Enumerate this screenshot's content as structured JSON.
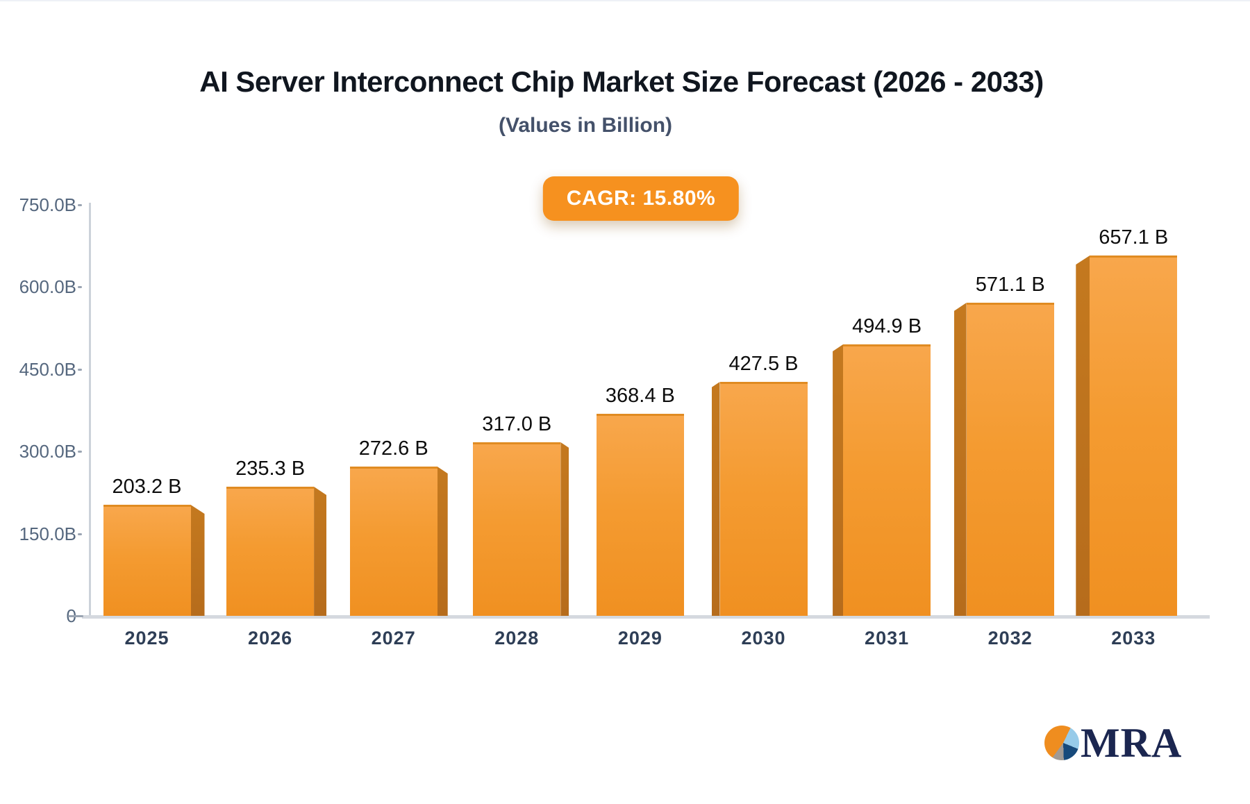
{
  "header": {
    "title": "AI Server Interconnect Chip Market Size Forecast (2026 - 2033)",
    "subtitle": "(Values in Billion)",
    "cagr_badge": "CAGR: 15.80%"
  },
  "chart_data": {
    "type": "bar",
    "title": "AI Server Interconnect Chip Market Size Forecast (2026 - 2033)",
    "subtitle": "(Values in Billion)",
    "cagr_percent": 15.8,
    "categories": [
      "2025",
      "2026",
      "2027",
      "2028",
      "2029",
      "2030",
      "2031",
      "2032",
      "2033"
    ],
    "values": [
      203.2,
      235.3,
      272.6,
      317.0,
      368.4,
      427.5,
      494.9,
      571.1,
      657.1
    ],
    "value_labels": [
      "203.2 B",
      "235.3 B",
      "272.6 B",
      "317.0 B",
      "368.4 B",
      "427.5 B",
      "494.9 B",
      "571.1 B",
      "657.1 B"
    ],
    "xlabel": "",
    "ylabel": "",
    "ylim": [
      0,
      750
    ],
    "y_ticks": [
      {
        "value": 750,
        "label": "750.0B"
      },
      {
        "value": 600,
        "label": "600.0B"
      },
      {
        "value": 450,
        "label": "450.0B"
      },
      {
        "value": 300,
        "label": "300.0B"
      },
      {
        "value": 150,
        "label": "150.0B"
      },
      {
        "value": 0,
        "label": "0"
      }
    ],
    "grid": false,
    "legend_position": "none",
    "bar_style_3d": true,
    "colors": {
      "bar_front_top": "#f8a74c",
      "bar_front_bottom": "#f09021",
      "bar_side": "#bc7120",
      "axis_line": "#ccd2da",
      "baseline": "#d5d9df",
      "y_tick_text": "#55677e",
      "x_tick_text": "#2e3e56",
      "value_label_text": "#0d0d0d",
      "badge_background": "#f6911f",
      "badge_text": "#ffffff"
    }
  },
  "branding": {
    "logo_text": "MRA",
    "logo_pie_colors": [
      "#ef8d1f",
      "#97cbe9",
      "#174a7b",
      "#a19a94"
    ],
    "logo_text_color": "#1b2650"
  }
}
